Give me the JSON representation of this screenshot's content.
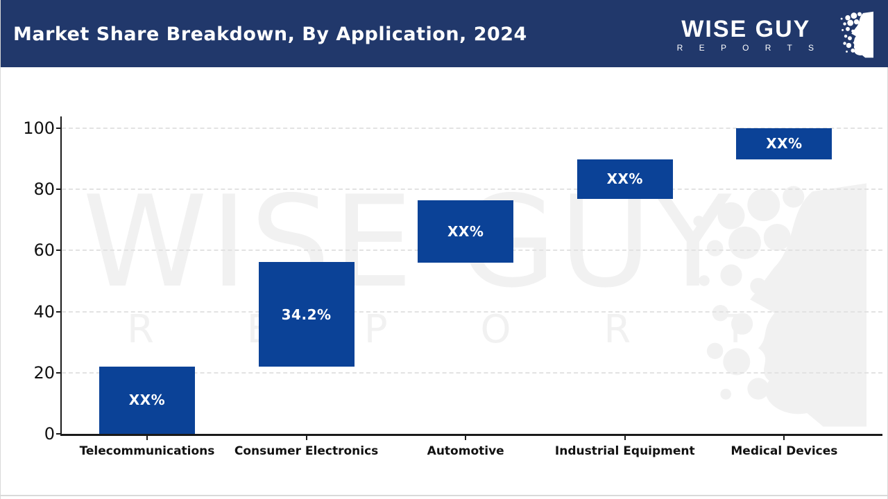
{
  "header": {
    "title": "Market Share Breakdown, By Application, 2024"
  },
  "logo": {
    "name": "wise-guy-reports-logo",
    "line1": "WISE GUY",
    "line2": "R E P O R T S"
  },
  "watermark": {
    "line1": "WISE GUY",
    "line2": "R E P O R T S"
  },
  "colors": {
    "header_bg": "#21386b",
    "bar": "#0b4297",
    "axis": "#1a1a1a",
    "gridline": "#e2e2e2",
    "watermark": "#f1f1f1",
    "bar_label_text": "#ffffff"
  },
  "chart_data": {
    "type": "bar",
    "subtype": "waterfall-floating-bars",
    "title": "Market Share Breakdown, By Application, 2024",
    "xlabel": "",
    "ylabel": "",
    "categories": [
      "Telecommunications",
      "Consumer Electronics",
      "Automotive",
      "Industrial Equipment",
      "Medical Devices"
    ],
    "segments": [
      {
        "category": "Telecommunications",
        "start": 0,
        "end": 22,
        "label": "XX%"
      },
      {
        "category": "Consumer Electronics",
        "start": 22,
        "end": 56.2,
        "label": "34.2%"
      },
      {
        "category": "Automotive",
        "start": 56,
        "end": 76.4,
        "label": "XX%"
      },
      {
        "category": "Industrial Equipment",
        "start": 76.9,
        "end": 89.9,
        "label": "XX%"
      },
      {
        "category": "Medical Devices",
        "start": 89.9,
        "end": 99.9,
        "label": "XX%"
      }
    ],
    "yticks": [
      0,
      20,
      40,
      60,
      80,
      100
    ],
    "ylim": [
      0,
      104
    ],
    "grid": "horizontal dashed",
    "legend": "none",
    "bar_color": "#0b4297"
  }
}
